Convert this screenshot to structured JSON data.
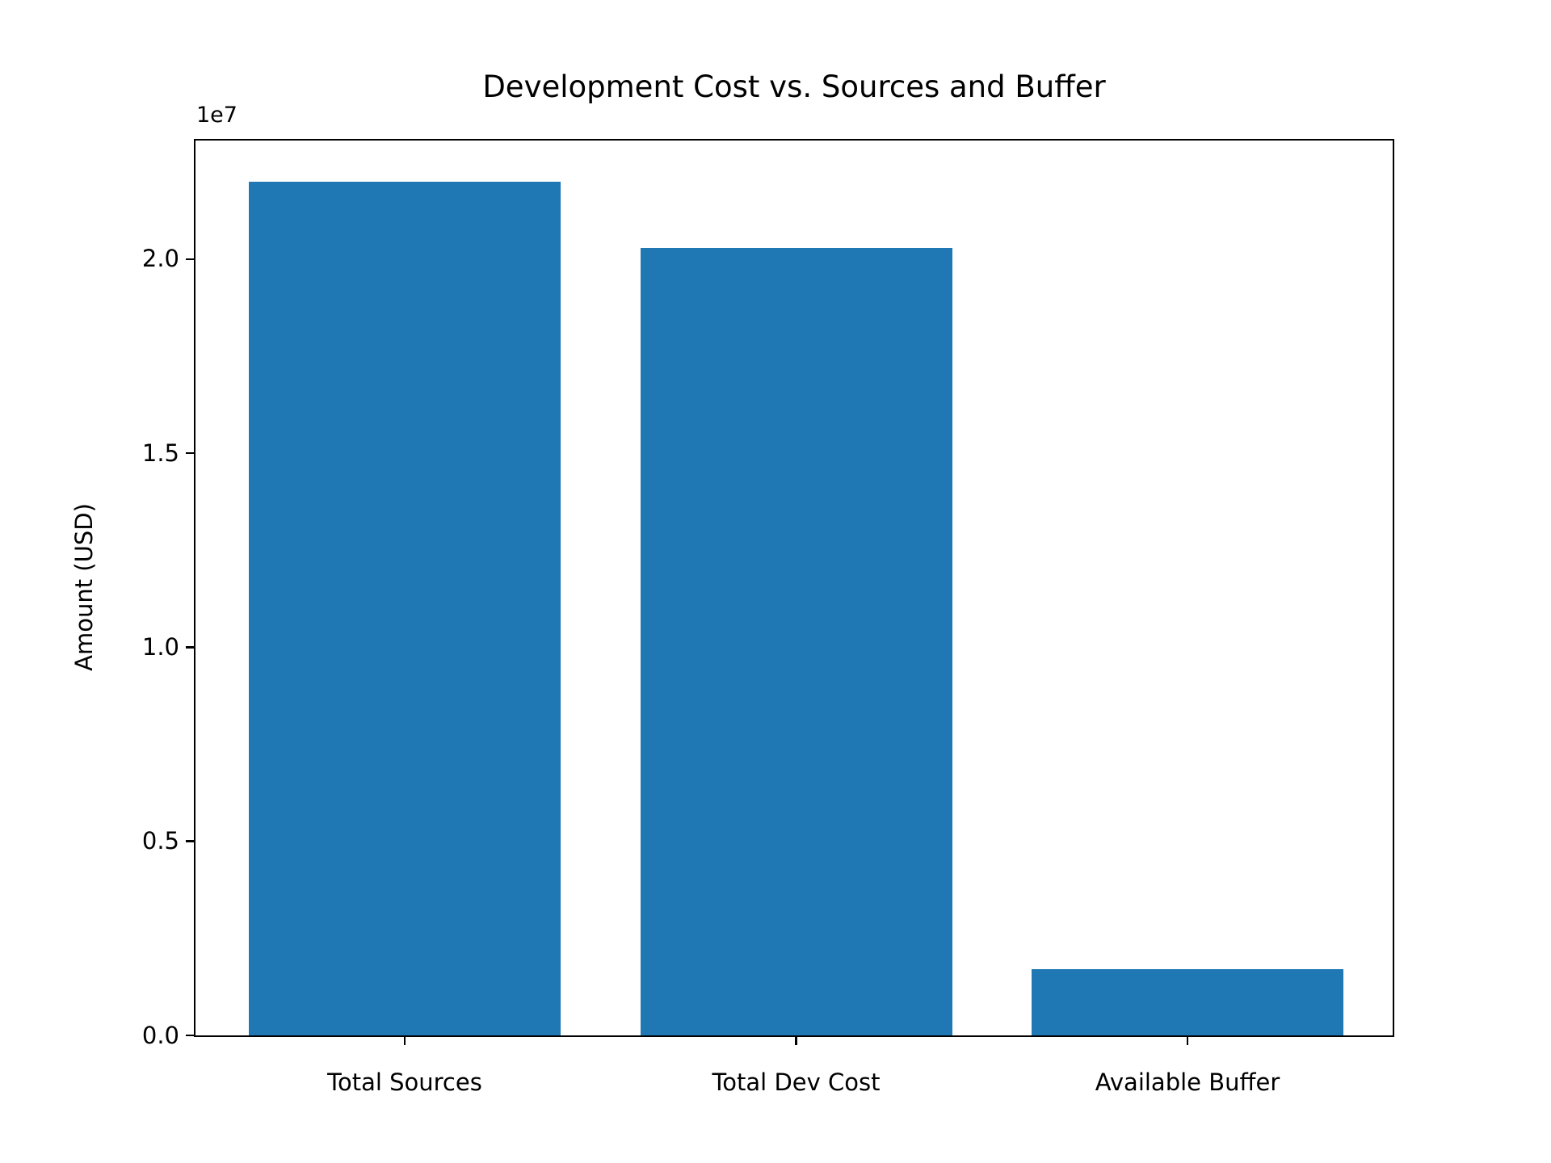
{
  "chart_data": {
    "type": "bar",
    "title": "Development Cost vs. Sources and Buffer",
    "xlabel": "",
    "ylabel": "Amount (USD)",
    "offset_text": "1e7",
    "categories": [
      "Total Sources",
      "Total Dev Cost",
      "Available Buffer"
    ],
    "values": [
      22000000,
      20300000,
      1700000
    ],
    "ylim": [
      0,
      23100000
    ],
    "yticks": {
      "values": [
        0,
        5000000,
        10000000,
        15000000,
        20000000
      ],
      "labels": [
        "0.0",
        "0.5",
        "1.0",
        "1.5",
        "2.0"
      ]
    },
    "bar_color": "#1f77b4",
    "axis_color": "#000000",
    "background_color": "#ffffff",
    "grid": false,
    "legend": null
  }
}
